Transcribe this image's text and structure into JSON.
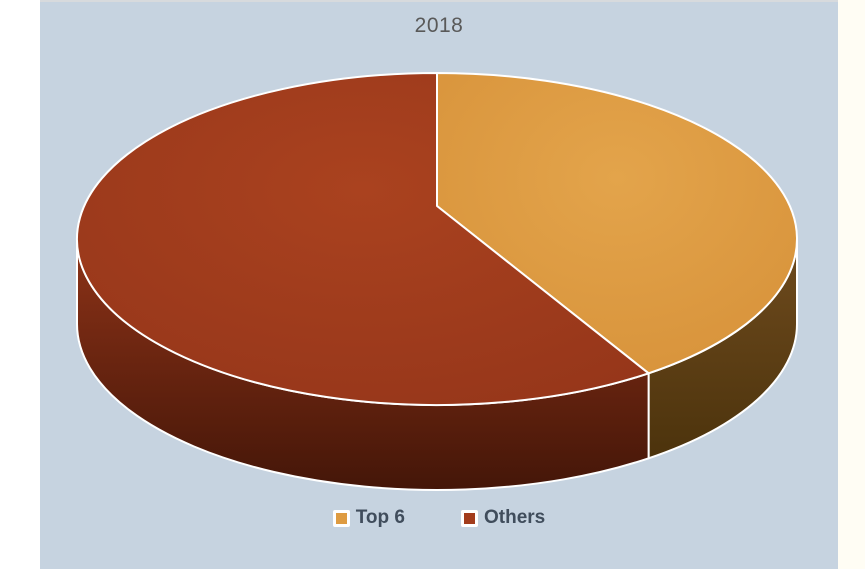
{
  "chart_data": {
    "type": "pie",
    "title": "2018",
    "categories": [
      "Top 6",
      "Others"
    ],
    "values": [
      40,
      60
    ],
    "unit": "%",
    "values_note": "estimated from slice angles (144 deg / 216 deg)",
    "effect": "3d",
    "start_angle_deg": 0,
    "direction": "clockwise",
    "legend_position": "bottom",
    "separator_color": "#ffffff",
    "colors": [
      "#de9b41",
      "#a23c1c"
    ],
    "slice_styles": [
      {
        "top": [
          "#e3a44b",
          "#d7923a"
        ],
        "side": [
          "#6f4b1e",
          "#4c330c"
        ]
      },
      {
        "top": [
          "#aa421f",
          "#96361a"
        ],
        "side": [
          "#8e3318",
          "#441608"
        ]
      }
    ],
    "title_color": "#595959",
    "background": "#c6d3e0"
  },
  "legend": {
    "items": [
      {
        "label": "Top 6",
        "color": "#de9b41"
      },
      {
        "label": "Others",
        "color": "#a23c1c"
      }
    ]
  }
}
